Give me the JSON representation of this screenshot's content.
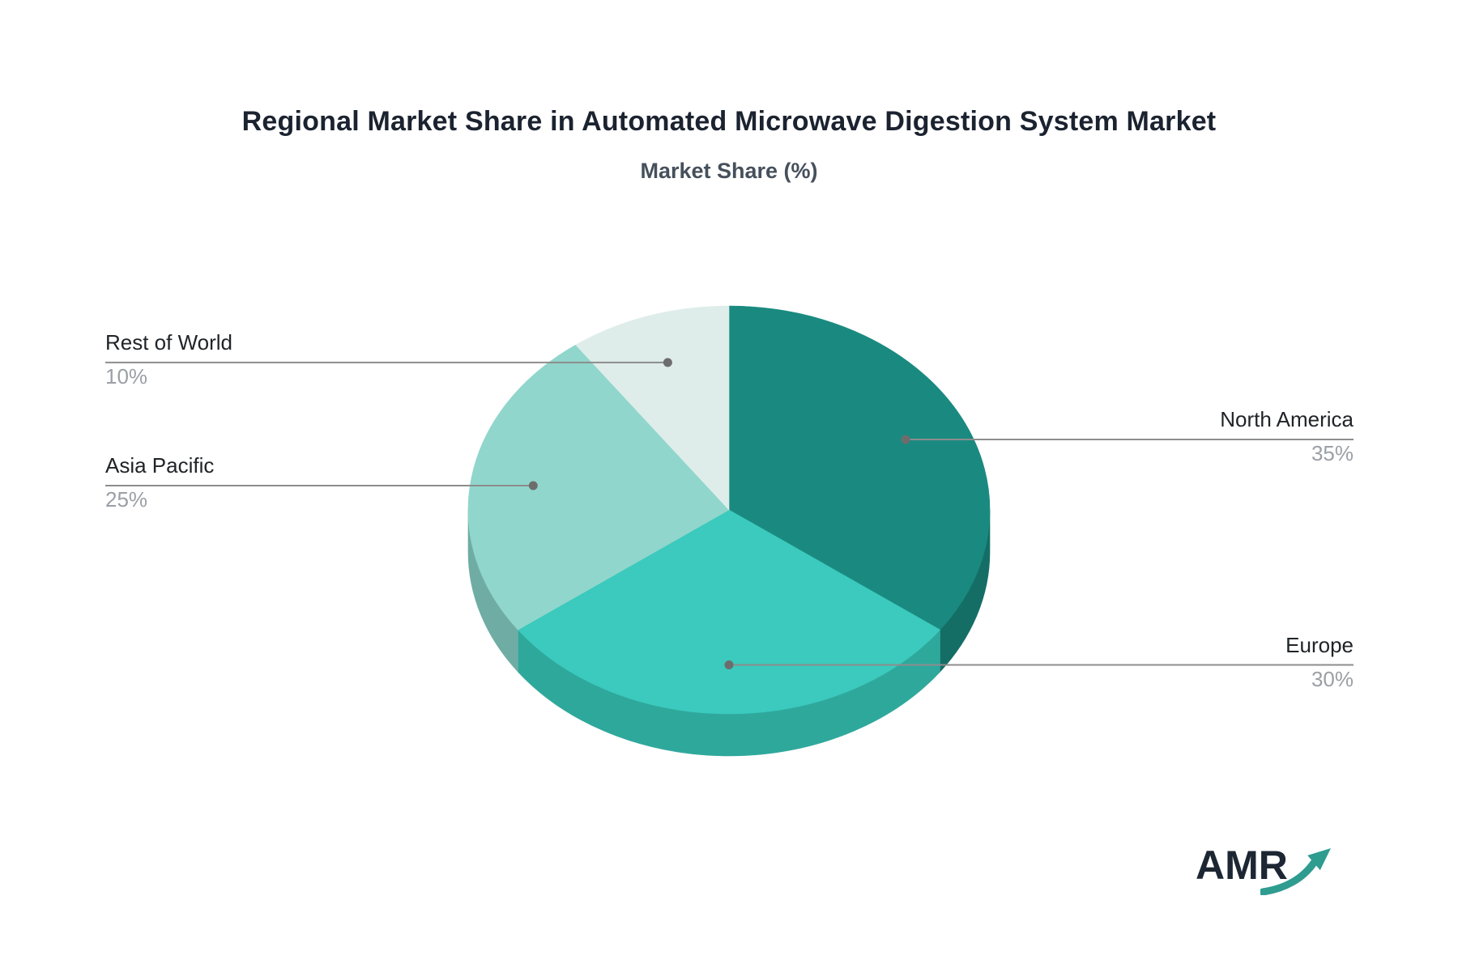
{
  "header": {
    "title": "Regional Market Share in Automated Microwave Digestion System Market",
    "subtitle": "Market Share (%)"
  },
  "chart_data": {
    "type": "pie",
    "style": "3d",
    "title": "Regional Market Share in Automated Microwave Digestion System Market",
    "subtitle": "Market Share (%)",
    "unit": "%",
    "start_angle_deg": 0,
    "direction": "clockwise",
    "legend": "none",
    "labels": [
      "North America",
      "Europe",
      "Asia Pacific",
      "Rest of World"
    ],
    "values": [
      35,
      30,
      25,
      10
    ],
    "value_labels": [
      "35%",
      "30%",
      "25%",
      "10%"
    ],
    "colors": [
      "#1A8A80",
      "#3BCABD",
      "#90D6CC",
      "#DEEDEA"
    ],
    "side_colors": [
      "#146E66",
      "#2FA89C",
      "#6FADA4",
      "#BCD6D1"
    ],
    "callout_sides": [
      "right",
      "right",
      "left",
      "left"
    ],
    "callout_line_color": "#8d8d8d",
    "callout_dot_color": "#6d6d6d"
  },
  "logo": {
    "text": "AMR",
    "text_color": "#1d2733",
    "arrow_color": "#2F9C90"
  }
}
